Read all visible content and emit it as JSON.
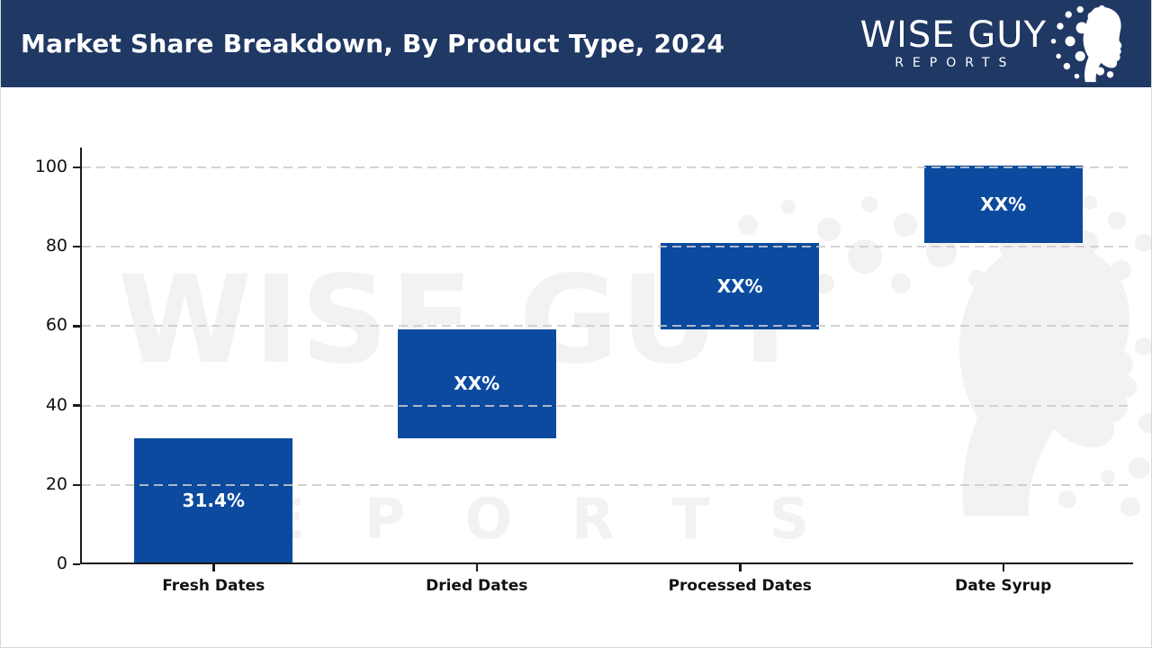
{
  "header": {
    "title": "Market Share Breakdown, By Product Type, 2024",
    "background_color": "#1F3864",
    "logo": {
      "line1": "WISE GUY",
      "line2": "REPORTS"
    }
  },
  "watermark": {
    "line1": "WISE GUY",
    "line2": "REPORTS",
    "color": "#f2f2f2"
  },
  "chart_data": {
    "type": "bar",
    "subtype": "floating-waterfall",
    "title": "Market Share Breakdown, By Product Type, 2024",
    "categories": [
      "Fresh Dates",
      "Dried Dates",
      "Processed Dates",
      "Date Syrup"
    ],
    "bars": [
      {
        "category": "Fresh Dates",
        "label": "31.4%",
        "start": 0,
        "end": 31.4
      },
      {
        "category": "Dried Dates",
        "label": "XX%",
        "start": 31.4,
        "end": 58.8
      },
      {
        "category": "Processed Dates",
        "label": "XX%",
        "start": 58.8,
        "end": 80.5
      },
      {
        "category": "Date Syrup",
        "label": "XX%",
        "start": 80.5,
        "end": 100
      }
    ],
    "xlabel": "",
    "ylabel": "",
    "ylim": [
      0,
      105
    ],
    "yticks": [
      0,
      20,
      40,
      60,
      80,
      100
    ],
    "grid": "horizontal dashed gridlines drawn over bars",
    "legend": "none",
    "bar_color": "#0B4A9F",
    "bar_label_color": "#FFFFFF",
    "axis_color": "#1a1a1a"
  }
}
